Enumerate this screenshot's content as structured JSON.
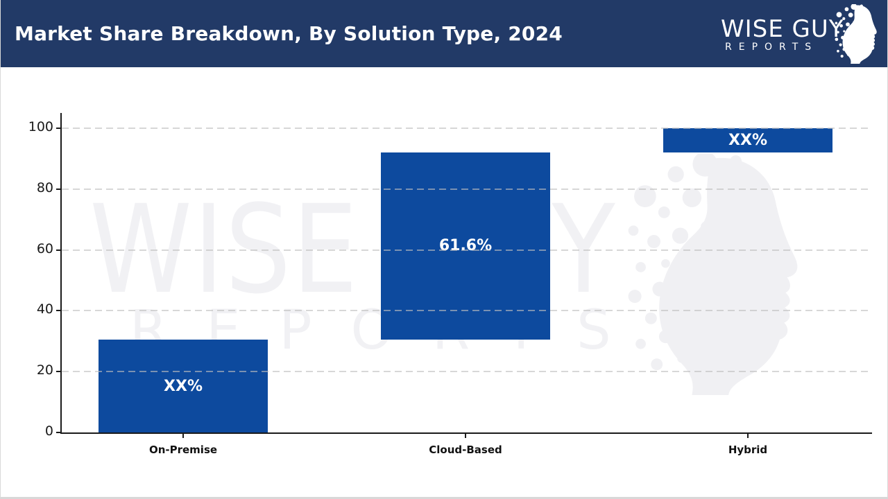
{
  "header": {
    "title": "Market Share Breakdown, By Solution Type, 2024",
    "logo": {
      "wordmark": "WISE GUY",
      "subtitle": "REPORTS",
      "icon": "dotted-head-profile"
    }
  },
  "watermark": {
    "wordmark": "WISE GUY",
    "subtitle": "REPORTS",
    "icon": "dotted-head-profile"
  },
  "colors": {
    "header_bg": "#223a67",
    "bar_fill": "#0d4a9e",
    "grid_dash": "#d8d8d8",
    "axis": "#1a1a1a",
    "watermark": "#f1f1f4",
    "page_border": "#d9d9d9"
  },
  "chart_data": {
    "type": "bar",
    "variant": "floating-segment-breakdown",
    "title": "Market Share Breakdown, By Solution Type, 2024",
    "categories": [
      "On-Premise",
      "Cloud-Based",
      "Hybrid"
    ],
    "segments": [
      {
        "category": "On-Premise",
        "start": 0,
        "end": 30.5,
        "est_value": 30.5,
        "value_label": "XX%",
        "masked": true
      },
      {
        "category": "Cloud-Based",
        "start": 30.5,
        "end": 92.1,
        "est_value": 61.6,
        "value_label": "61.6%",
        "masked": false
      },
      {
        "category": "Hybrid",
        "start": 92.1,
        "end": 100,
        "est_value": 7.9,
        "value_label": "XX%",
        "masked": true
      }
    ],
    "yticks": [
      0,
      20,
      40,
      60,
      80,
      100
    ],
    "ylim": [
      0,
      105
    ],
    "xlabel": "",
    "ylabel": "",
    "grid": "horizontal-dashed",
    "legend": "none",
    "bar_color": "#0d4a9e",
    "label_color": "#ffffff"
  }
}
